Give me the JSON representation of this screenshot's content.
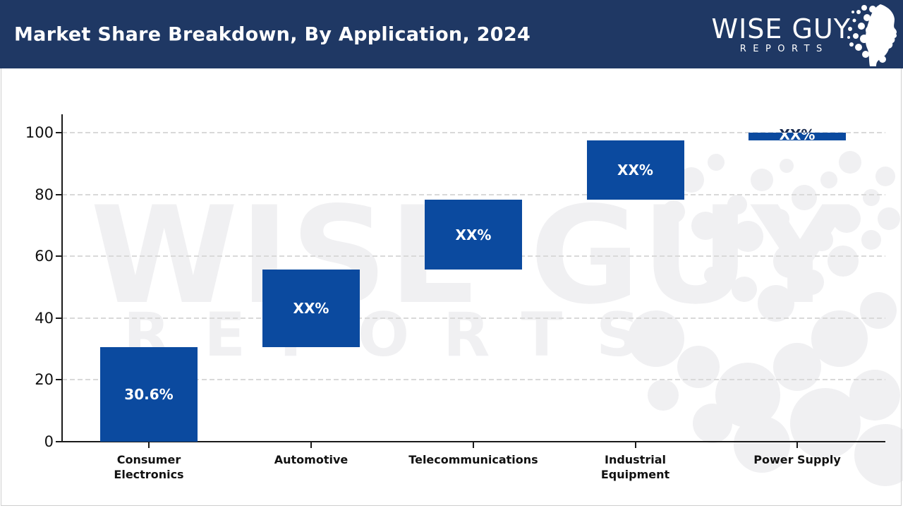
{
  "header": {
    "title": "Market Share Breakdown, By Application, 2024",
    "bg_color": "#1f3864",
    "logo": {
      "line1": "WISE GUY",
      "line2": "REPORTS"
    }
  },
  "watermark": {
    "line1": "WISE GUY",
    "line2": "REPORTS"
  },
  "chart_data": {
    "type": "bar",
    "subtype": "floating-waterfall-segments",
    "title": "Market Share Breakdown, By Application, 2024",
    "unit": "%",
    "categories": [
      "Consumer Electronics",
      "Automotive",
      "Telecommunications",
      "Industrial Equipment",
      "Power Supply"
    ],
    "category_lines": [
      [
        "Consumer",
        "Electronics"
      ],
      [
        "Automotive"
      ],
      [
        "Telecommunications"
      ],
      [
        "Industrial",
        "Equipment"
      ],
      [
        "Power Supply"
      ]
    ],
    "segments": [
      {
        "category": "Consumer Electronics",
        "start": 0,
        "end": 30.6,
        "size": 30.6,
        "label": "30.6%"
      },
      {
        "category": "Automotive",
        "start": 30.6,
        "end": 55.8,
        "size": 25.2,
        "label": "XX%"
      },
      {
        "category": "Telecommunications",
        "start": 55.8,
        "end": 78.2,
        "size": 22.4,
        "label": "XX%"
      },
      {
        "category": "Industrial Equipment",
        "start": 78.2,
        "end": 97.4,
        "size": 19.2,
        "label": "XX%"
      },
      {
        "category": "Power Supply",
        "start": 97.4,
        "end": 100,
        "size": 2.6,
        "label": "XX%"
      }
    ],
    "bar_labels": [
      "30.6%",
      "XX%",
      "XX%",
      "XX%",
      "XX%"
    ],
    "yticks": [
      0,
      20,
      40,
      60,
      80,
      100
    ],
    "ytick_labels": [
      "0",
      "20",
      "40",
      "60",
      "80",
      "100"
    ],
    "ylim": [
      0,
      106
    ],
    "xlabel": "",
    "ylabel": "",
    "grid": {
      "horizontal": true,
      "style": "dashed",
      "color": "#d9d9d9"
    },
    "legend": null,
    "bar_color": "#0b4a9f",
    "bar_label_color": "#ffffff"
  },
  "colors": {
    "header_bg": "#1f3864",
    "bar": "#0b4a9f",
    "grid": "#d9d9d9",
    "axis": "#1a1a1a",
    "watermark": "#f0f0f2",
    "title_text": "#ffffff",
    "short_bar_label_outside": "#1a2b4f",
    "page_border": "#cfcfcf"
  }
}
